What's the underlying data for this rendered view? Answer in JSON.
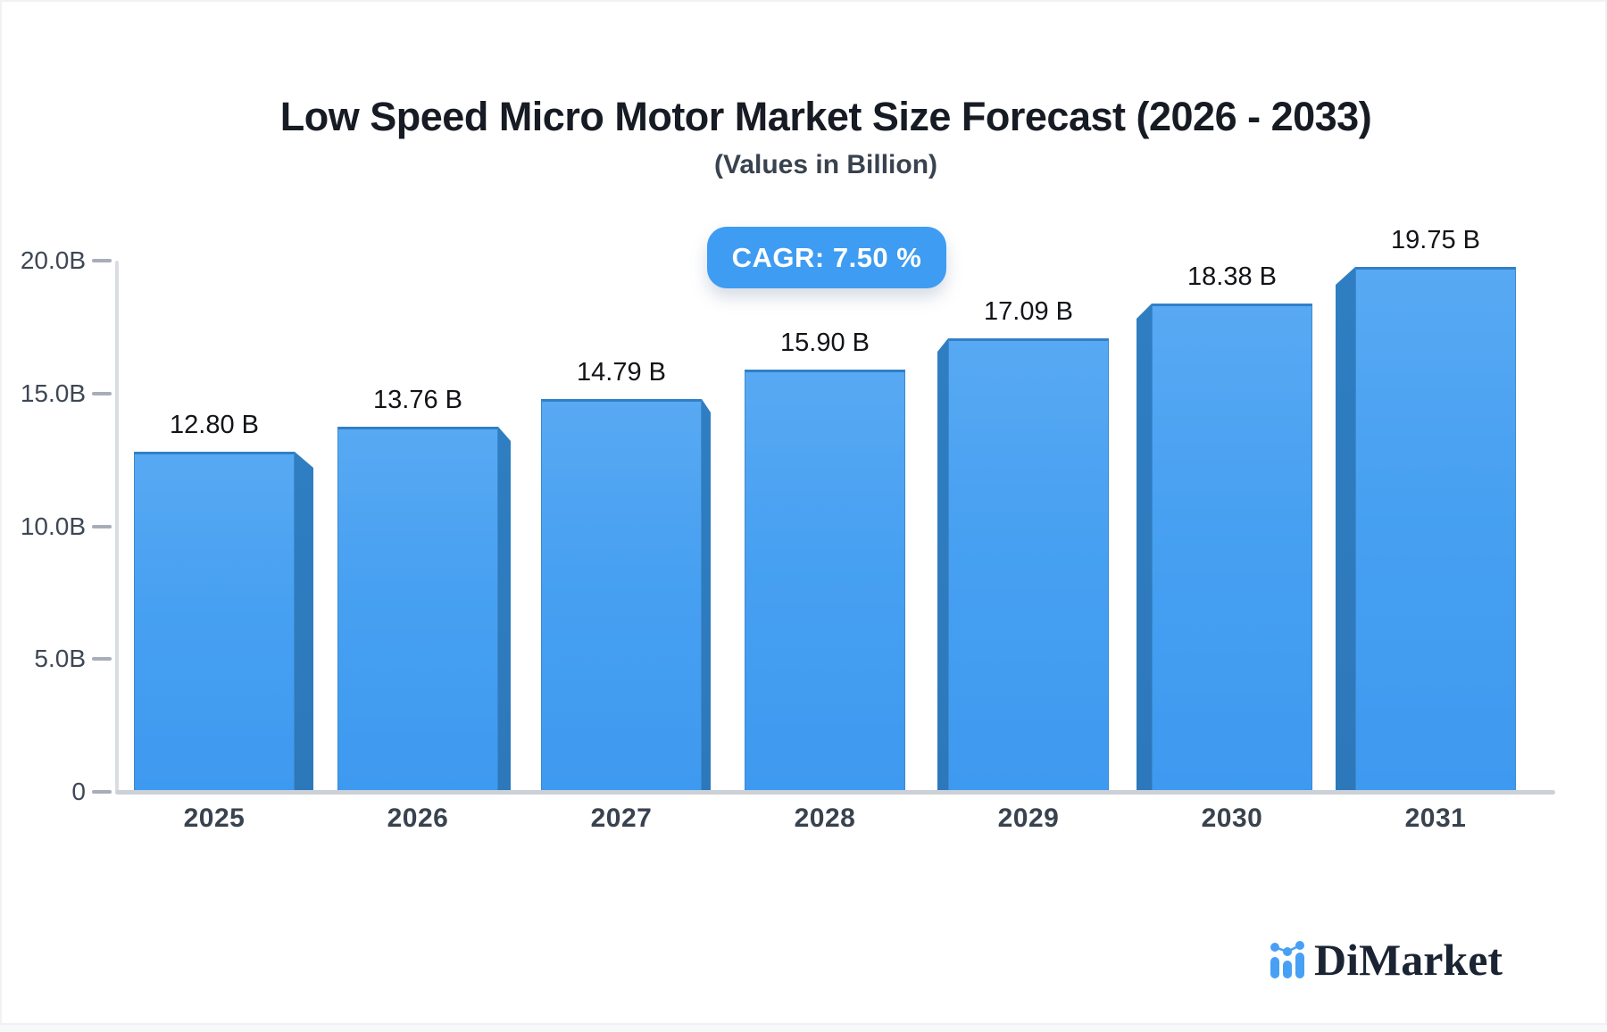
{
  "page": {
    "background": "#f7f8f9",
    "card_background": "#ffffff"
  },
  "header": {
    "title": "Low Speed Micro Motor Market Size Forecast (2026 - 2033)",
    "subtitle": "(Values in Billion)"
  },
  "badge": {
    "label": "CAGR: 7.50 %",
    "background": "#3e9cf2",
    "text_color": "#ffffff"
  },
  "chart_data": {
    "type": "bar",
    "title": "Low Speed Micro Motor Market Size Forecast (2026 - 2033)",
    "subtitle": "(Values in Billion)",
    "categories": [
      "2025",
      "2026",
      "2027",
      "2028",
      "2029",
      "2030",
      "2031"
    ],
    "values": [
      12.8,
      13.76,
      14.79,
      15.9,
      17.09,
      18.38,
      19.75
    ],
    "value_labels": [
      "12.80 B",
      "13.76 B",
      "14.79 B",
      "15.90 B",
      "17.09 B",
      "18.38 B",
      "19.75 B"
    ],
    "xlabel": "",
    "ylabel": "",
    "ylim": [
      0,
      20
    ],
    "yticks": [
      {
        "value": 20,
        "label": "20.0B"
      },
      {
        "value": 15,
        "label": "15.0B"
      },
      {
        "value": 10,
        "label": "10.0B"
      },
      {
        "value": 5,
        "label": "5.0B"
      },
      {
        "value": 0,
        "label": "0"
      }
    ],
    "grid": false,
    "legend": false,
    "annotation": "CAGR: 7.50 %",
    "bar_front_color": "#45a0f1",
    "bar_side_color": "#2e7bbe",
    "style": "3d-extruded-bars-perspective-from-center"
  },
  "logo": {
    "text": "DiMarket",
    "icon": "bar-line-chart-icon",
    "text_color": "#1b2433",
    "icon_color": "#47a0f4"
  }
}
